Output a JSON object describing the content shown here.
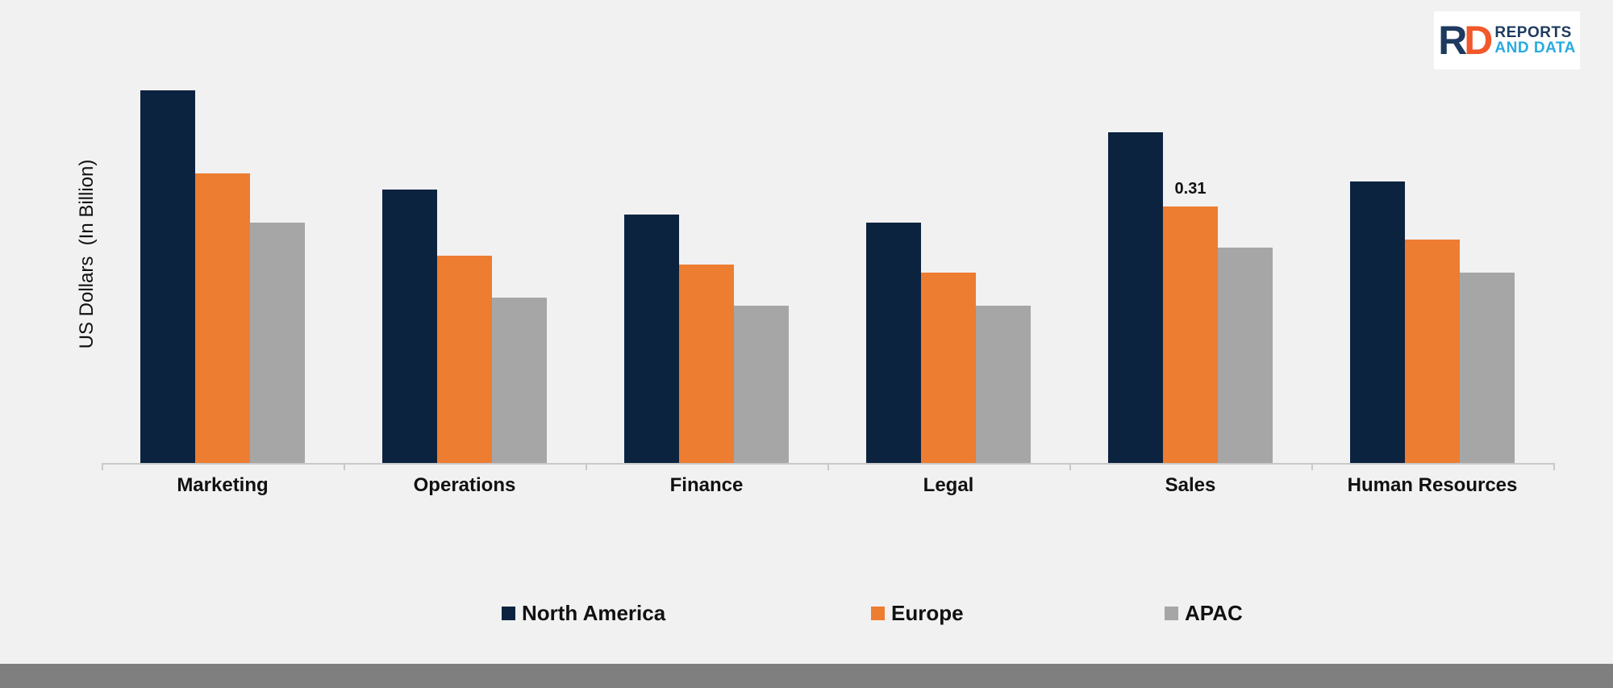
{
  "page": {
    "background": "#f1f1f2",
    "footer_bar_color": "#7f7f7f",
    "axis_color": "#c9c9c9"
  },
  "logo": {
    "monogram_r": "R",
    "monogram_d": "D",
    "line1": "REPORTS",
    "line2": "AND DATA",
    "colors": {
      "navy": "#1e3a5f",
      "orange": "#f1582a",
      "blue": "#29abe2"
    }
  },
  "chart_data": {
    "type": "bar",
    "title": "",
    "xlabel": "",
    "ylabel": "US Dollars  (In Billion)",
    "categories": [
      "Marketing",
      "Operations",
      "Finance",
      "Legal",
      "Sales",
      "Human Resources"
    ],
    "series": [
      {
        "name": "North America",
        "color": "#0c2340",
        "values": [
          0.45,
          0.33,
          0.3,
          0.29,
          0.4,
          0.34
        ]
      },
      {
        "name": "Europe",
        "color": "#ed7d31",
        "values": [
          0.35,
          0.25,
          0.24,
          0.23,
          0.31,
          0.27
        ]
      },
      {
        "name": "APAC",
        "color": "#a6a6a6",
        "values": [
          0.29,
          0.2,
          0.19,
          0.19,
          0.26,
          0.23
        ]
      }
    ],
    "data_labels": [
      {
        "series_index": 1,
        "category_index": 4,
        "text": "0.31"
      }
    ],
    "ylim": [
      0,
      0.56
    ],
    "grid": false,
    "y_ticks_visible": false,
    "legend_position": "bottom"
  }
}
